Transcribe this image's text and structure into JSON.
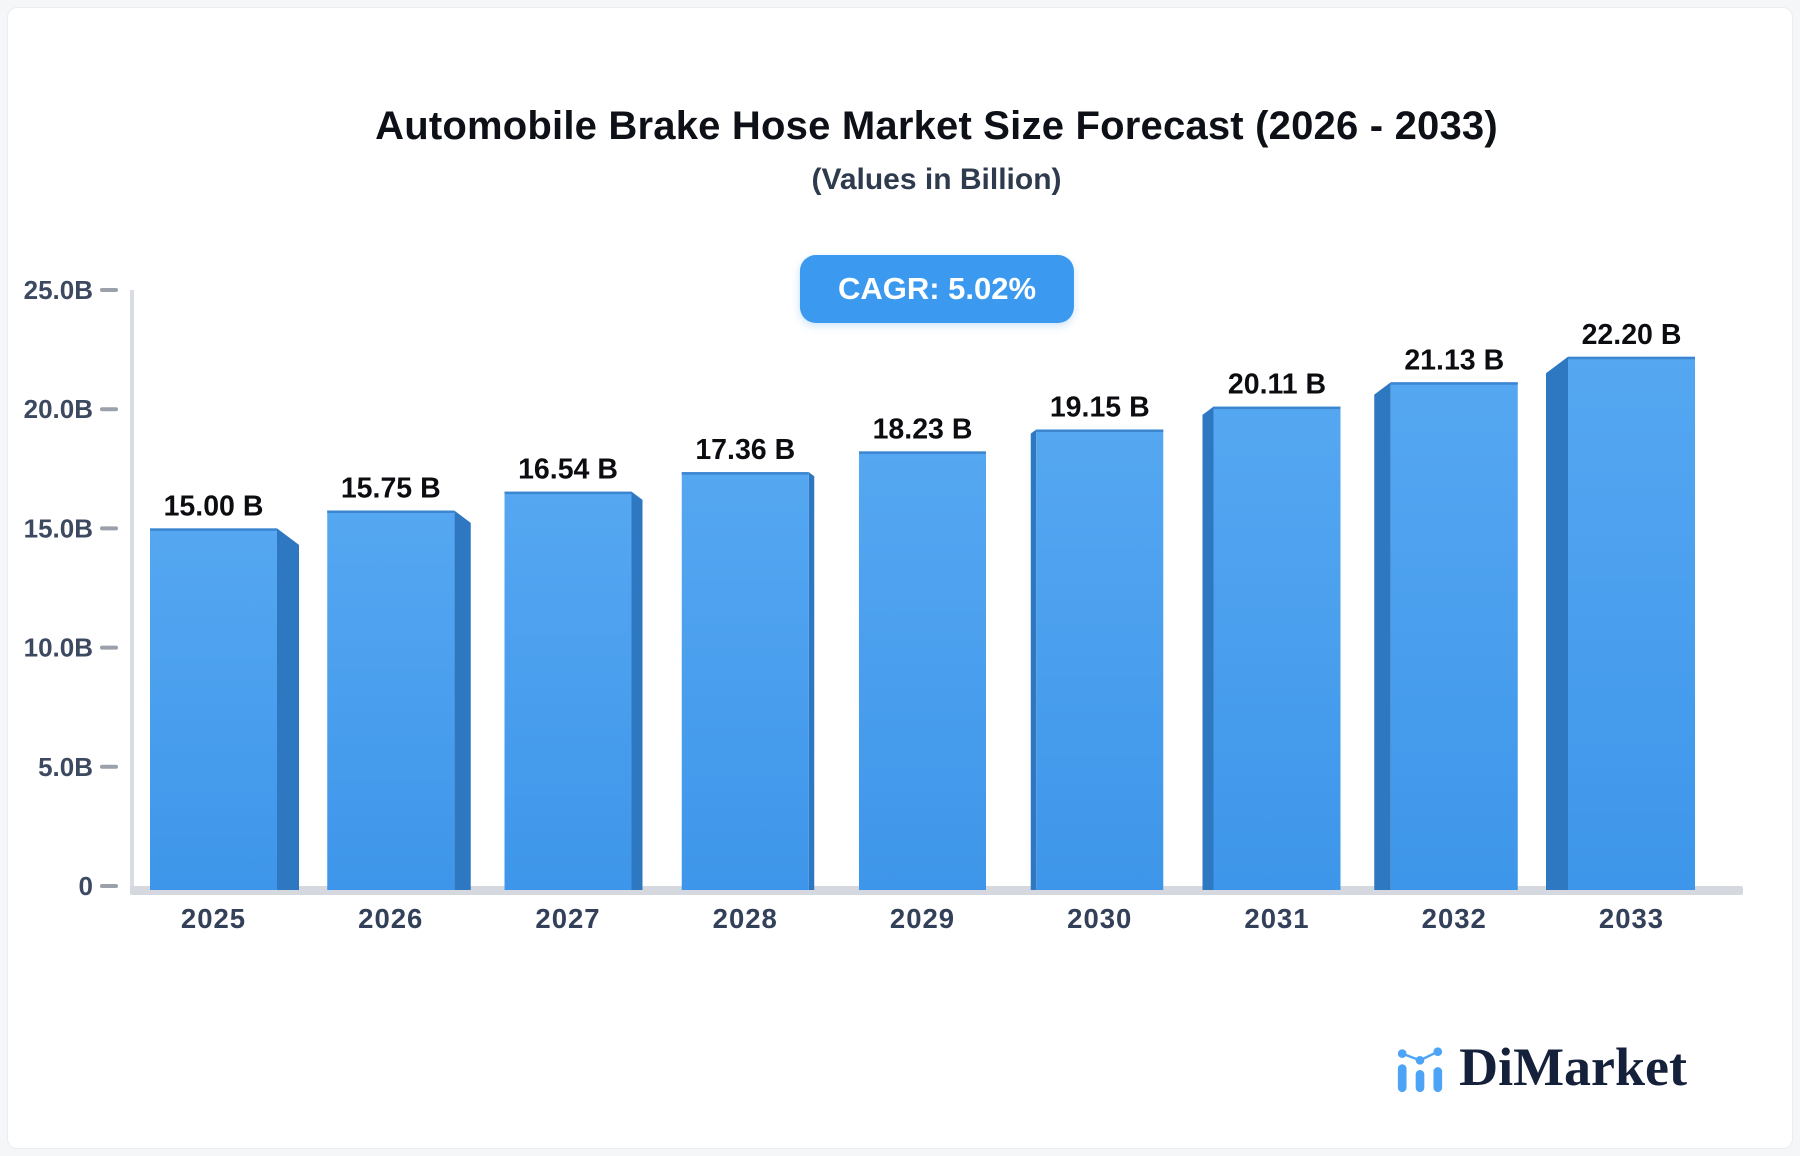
{
  "page": {
    "title": "Automobile Brake Hose Market Size Forecast (2026 - 2033)",
    "subtitle": "(Values in Billion)"
  },
  "badge": {
    "label": "CAGR: 5.02%",
    "bg": "#3b99f0",
    "text_color": "#ffffff"
  },
  "chart_data": {
    "type": "bar",
    "title": "Automobile Brake Hose Market Size Forecast (2026 - 2033)",
    "subtitle": "(Values in Billion)",
    "cagr_label": "CAGR: 5.02%",
    "categories": [
      "2025",
      "2026",
      "2027",
      "2028",
      "2029",
      "2030",
      "2031",
      "2032",
      "2033"
    ],
    "values": [
      15.0,
      15.75,
      16.54,
      17.36,
      18.23,
      19.15,
      20.11,
      21.13,
      22.2
    ],
    "value_labels": [
      "15.00 B",
      "15.75 B",
      "16.54 B",
      "17.36 B",
      "18.23 B",
      "19.15 B",
      "20.11 B",
      "21.13 B",
      "22.20 B"
    ],
    "xlabel": "",
    "ylabel": "",
    "ylim": [
      0,
      25
    ],
    "ytick_values": [
      0,
      5,
      10,
      15,
      20,
      25
    ],
    "ytick_labels": [
      "0",
      "5.0B",
      "10.0B",
      "15.0B",
      "20.0B",
      "25.0B"
    ],
    "grid": false,
    "legend": null,
    "style": "pseudo-3d bars, side faces angle toward center vanishing point"
  },
  "colors": {
    "bar_face_top": "#55a7f1",
    "bar_face_bottom": "#3e96ea",
    "bar_side": "#2e78c2",
    "bar_top_edge": "#3c86cf",
    "axis_line": "#d9dce2",
    "baseline": "#d5d9df",
    "tick_dash": "#9aa1ab",
    "tick_text": "#3c4960",
    "year_text": "#334059",
    "value_text": "#0b0d10",
    "badge_bg": "#3b99f0"
  },
  "logo": {
    "text": "DiMarket",
    "icon": "mini-bar-chart-icon",
    "icon_color": "#4da3f5",
    "text_color": "#15203a"
  }
}
